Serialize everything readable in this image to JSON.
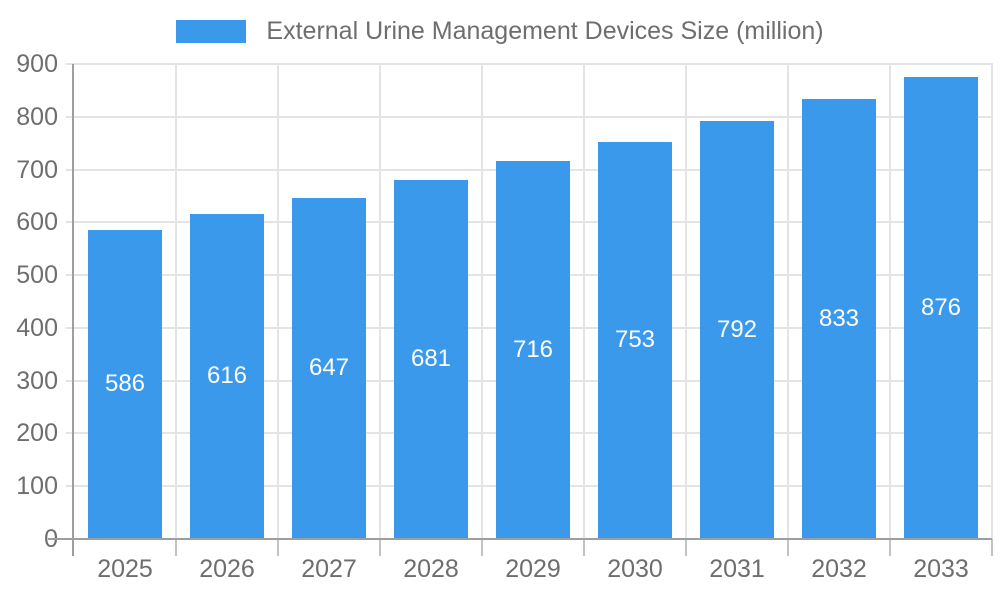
{
  "chart_data": {
    "type": "bar",
    "title": "External Urine Management Devices Size (million)",
    "categories": [
      "2025",
      "2026",
      "2027",
      "2028",
      "2029",
      "2030",
      "2031",
      "2032",
      "2033"
    ],
    "series": [
      {
        "name": "External Urine Management Devices Size (million)",
        "values": [
          586,
          616,
          647,
          681,
          716,
          753,
          792,
          833,
          876
        ],
        "color": "#3b99ec"
      }
    ],
    "value_labels_shown": true,
    "xlabel": "",
    "ylabel": "",
    "ylim": [
      0,
      900
    ],
    "yticks": [
      0,
      100,
      200,
      300,
      400,
      500,
      600,
      700,
      800,
      900
    ],
    "grid": "on",
    "legend_position": "top-center"
  },
  "colors": {
    "bar": "#3b99ec",
    "grid_line": "#e4e4e4",
    "axis_line": "#9e9e9e",
    "tick_mark": "#c2c2c2",
    "tick_text": "#6e6e6e",
    "legend_text": "#6e6e6e",
    "value_label_text": "#ffffff",
    "background": "#ffffff"
  }
}
